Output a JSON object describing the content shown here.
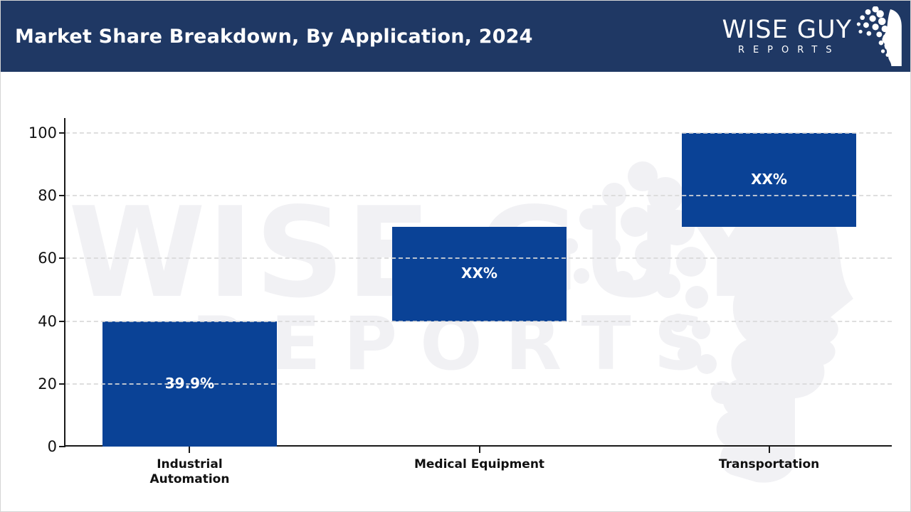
{
  "header": {
    "title": "Market Share Breakdown, By Application, 2024",
    "bg_color": "#1f3864",
    "logo": {
      "line1": "WISE GUY",
      "line2": "REPORTS"
    }
  },
  "watermark": {
    "line1": "WISE GUY",
    "line2": "REPORTS"
  },
  "chart_data": {
    "type": "bar",
    "subtype": "floating-segment-waterfall",
    "title": "Market Share Breakdown, By Application, 2024",
    "categories": [
      "Industrial\nAutomation",
      "Medical Equipment",
      "Transportation"
    ],
    "segments": [
      {
        "category": "Industrial\nAutomation",
        "start": 0,
        "end": 39.9,
        "value_label": "39.9%"
      },
      {
        "category": "Medical Equipment",
        "start": 40,
        "end": 70,
        "value_label": "XX%"
      },
      {
        "category": "Transportation",
        "start": 70,
        "end": 100,
        "value_label": "XX%"
      }
    ],
    "yticks": [
      0,
      20,
      40,
      60,
      80,
      100
    ],
    "ylim": [
      0,
      105
    ],
    "xlabel": "",
    "ylabel": "",
    "grid": "horizontal-dashed",
    "legend": "none",
    "bar_color": "#0a4296",
    "bar_value_label_color": "#ffffff",
    "axis_color": "#1a1a1a",
    "gridline_color": "#d9d9d9"
  }
}
